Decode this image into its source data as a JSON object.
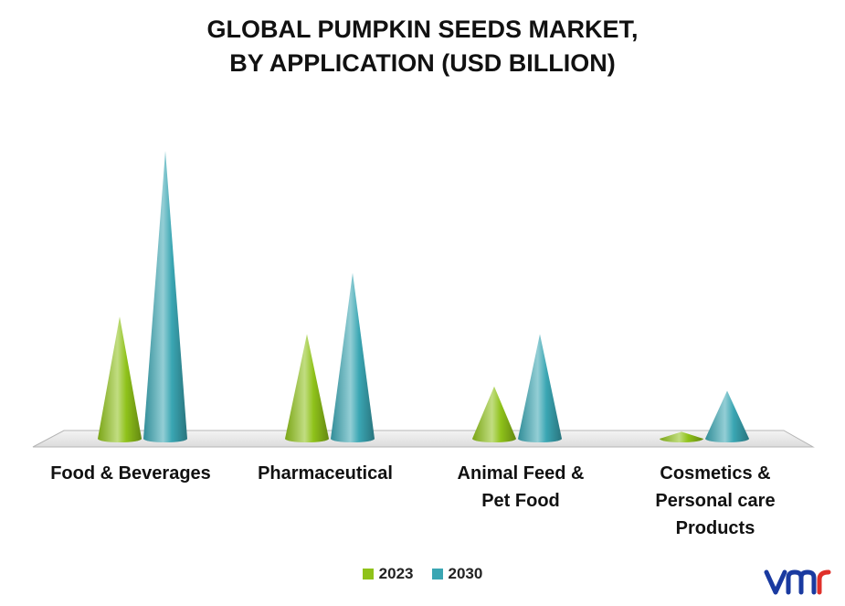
{
  "chart_data": {
    "type": "bar",
    "title_lines": [
      "GLOBAL PUMPKIN SEEDS MARKET,",
      "BY APPLICATION (USD BILLION)"
    ],
    "categories": [
      [
        "Food & Beverages"
      ],
      [
        "Pharmaceutical"
      ],
      [
        "Animal Feed &",
        "Pet Food"
      ],
      [
        "Cosmetics &",
        "Personal care",
        "Products"
      ]
    ],
    "series": [
      {
        "name": "2023",
        "values": [
          1.4,
          1.2,
          0.6,
          0.08
        ],
        "color": "#8fc21a"
      },
      {
        "name": "2030",
        "values": [
          3.3,
          1.9,
          1.2,
          0.55
        ],
        "color": "#3aa6b3"
      }
    ],
    "ylim": [
      0,
      3.5
    ],
    "legend_position": "bottom",
    "grid": false
  },
  "logo": {
    "text": "vmr",
    "color": "#1a3aa0"
  }
}
